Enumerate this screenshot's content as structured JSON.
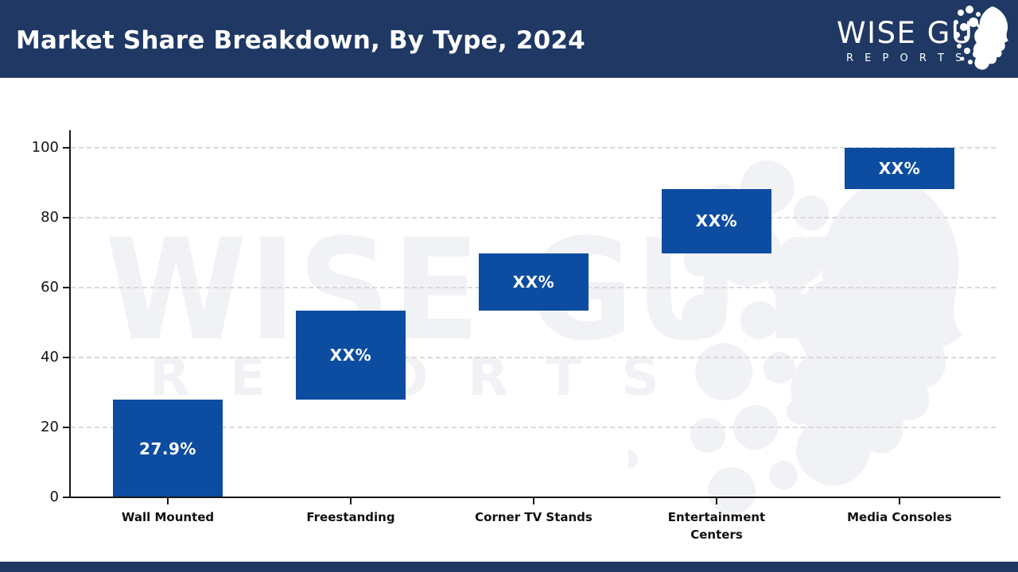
{
  "header": {
    "title": "Market Share Breakdown, By Type, 2024"
  },
  "logo": {
    "wordmark": "WISE GUY",
    "subtext": "R E P O R T S"
  },
  "watermark": {
    "wordmark": "WISE GUY",
    "subtext": "REPORTS"
  },
  "colors": {
    "header_bg": "#1f3864",
    "footer_bg": "#1f3864",
    "bar": "#0d4da1",
    "axis": "#161616",
    "gridline": "#d8d8d8",
    "value_label": "#ffffff",
    "watermark": "#f1f2f5"
  },
  "chart_data": {
    "type": "bar",
    "subtype": "waterfall",
    "title": "Market Share Breakdown, By Type, 2024",
    "xlabel": "",
    "ylabel": "",
    "categories": [
      "Wall Mounted",
      "Freestanding",
      "Corner TV Stands",
      "Entertainment Centers",
      "Media Consoles"
    ],
    "segments": [
      {
        "category": "Wall Mounted",
        "start": 0,
        "end": 27.9,
        "label": "27.9%"
      },
      {
        "category": "Freestanding",
        "start": 27.9,
        "end": 53.3,
        "label": "XX%"
      },
      {
        "category": "Corner TV Stands",
        "start": 53.3,
        "end": 69.8,
        "label": "XX%"
      },
      {
        "category": "Entertainment Centers",
        "start": 69.8,
        "end": 88.2,
        "label": "XX%"
      },
      {
        "category": "Media Consoles",
        "start": 88.2,
        "end": 100,
        "label": "XX%"
      }
    ],
    "yticks": [
      0,
      20,
      40,
      60,
      80,
      100
    ],
    "ylim": [
      0,
      105
    ],
    "grid": "horizontal-dashed",
    "legend": "none"
  }
}
